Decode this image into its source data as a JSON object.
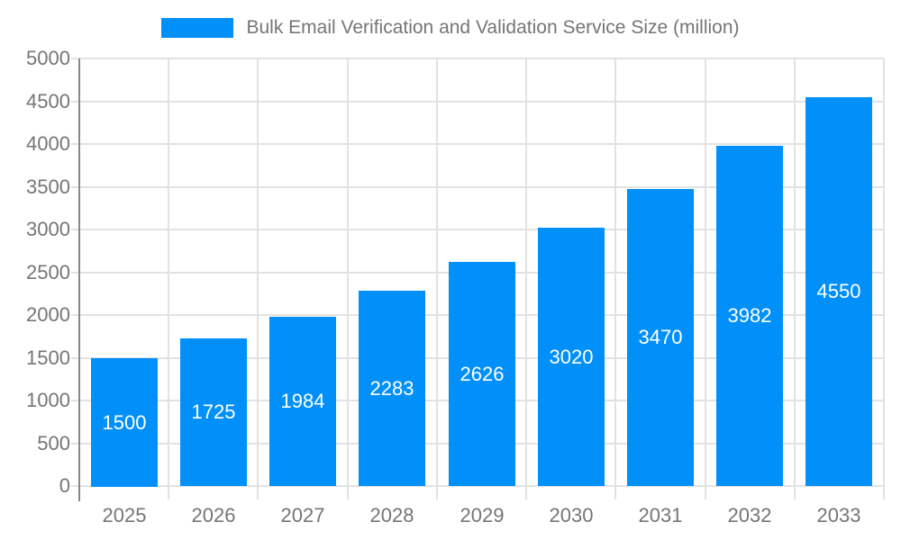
{
  "chart_data": {
    "type": "bar",
    "title": "Bulk Email Verification and Validation Service Size (million)",
    "categories": [
      "2025",
      "2026",
      "2027",
      "2028",
      "2029",
      "2030",
      "2031",
      "2032",
      "2033"
    ],
    "values": [
      1500,
      1725,
      1984,
      2283,
      2626,
      3020,
      3470,
      3982,
      4550
    ],
    "xlabel": "",
    "ylabel": "",
    "ylim": [
      0,
      5000
    ],
    "ytick_step": 500,
    "grid": true,
    "legend_position": "top",
    "bar_color": "#0190fa",
    "bar_label_color": "#ffffff",
    "axis_text_color": "#757575",
    "grid_color": "#e2e2e2",
    "axis_line_color": "#888888",
    "background_color": "#ffffff"
  }
}
